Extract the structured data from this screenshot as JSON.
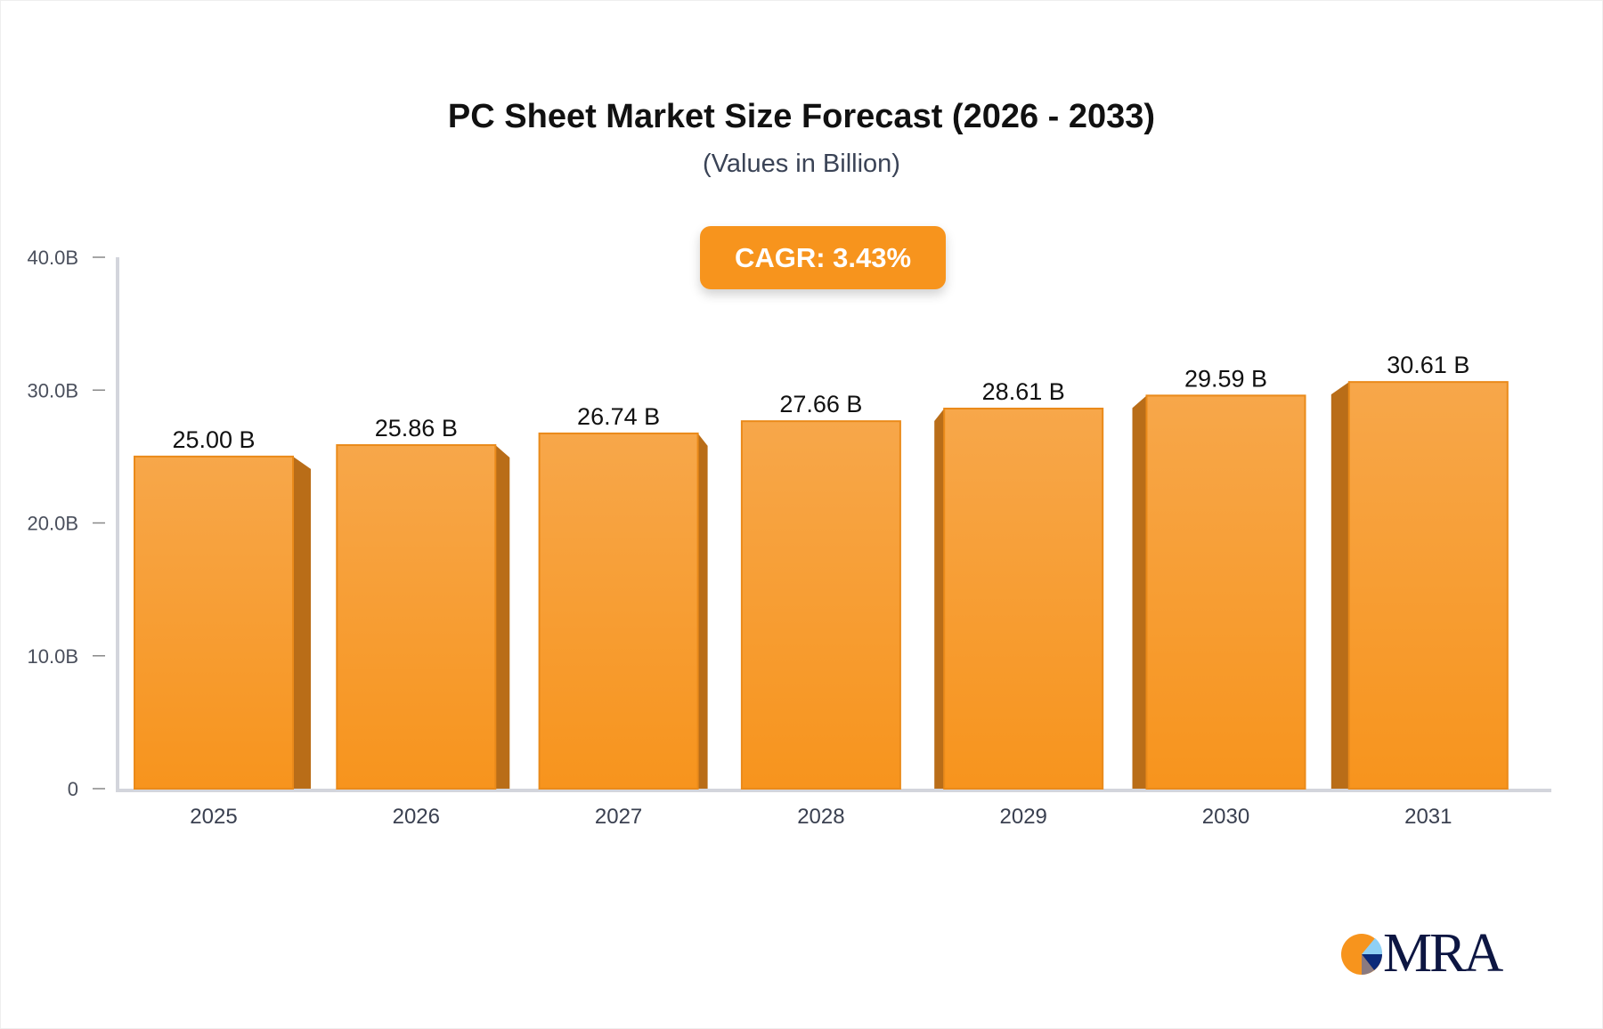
{
  "chart_data": {
    "type": "bar",
    "title": "PC Sheet Market Size Forecast (2026 - 2033)",
    "subtitle": "(Values in Billion)",
    "annotation": "CAGR: 3.43%",
    "categories": [
      "2025",
      "2026",
      "2027",
      "2028",
      "2029",
      "2030",
      "2031"
    ],
    "values": [
      25.0,
      25.86,
      26.74,
      27.66,
      28.61,
      29.59,
      30.61
    ],
    "value_labels": [
      "25.00 B",
      "25.86 B",
      "26.74 B",
      "27.66 B",
      "28.61 B",
      "29.59 B",
      "30.61 B"
    ],
    "ylim": [
      0,
      40
    ],
    "yticks": [
      0,
      10,
      20,
      30,
      40
    ],
    "ytick_labels": [
      "0",
      "10.0B",
      "20.0B",
      "30.0B",
      "40.0B"
    ],
    "xlabel": "",
    "ylabel": "",
    "grid": false,
    "colors": {
      "bar": "#f7941d",
      "bar_top": "#f7a74a",
      "bar_side": "#b96d18",
      "axis": "#d3d5dc"
    }
  },
  "logo": {
    "text": "MRA"
  }
}
